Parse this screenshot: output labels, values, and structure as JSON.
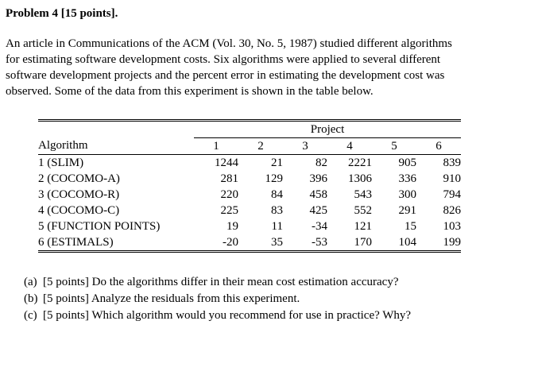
{
  "title": "Problem 4 [15 points].",
  "intro": "An article in Communications of the ACM (Vol. 30, No. 5, 1987) studied different algorithms for estimating software development costs. Six algorithms were applied to several different software development projects and the percent error in estimating the development cost was observed. Some of the data from this experiment is shown in the table below.",
  "table": {
    "group_header": "Project",
    "col_header": "Algorithm",
    "project_columns": [
      "1",
      "2",
      "3",
      "4",
      "5",
      "6"
    ],
    "rows": [
      {
        "algorithm": "1 (SLIM)",
        "values": [
          "1244",
          "21",
          "82",
          "2221",
          "905",
          "839"
        ]
      },
      {
        "algorithm": "2 (COCOMO-A)",
        "values": [
          "281",
          "129",
          "396",
          "1306",
          "336",
          "910"
        ]
      },
      {
        "algorithm": "3 (COCOMO-R)",
        "values": [
          "220",
          "84",
          "458",
          "543",
          "300",
          "794"
        ]
      },
      {
        "algorithm": "4 (COCOMO-C)",
        "values": [
          "225",
          "83",
          "425",
          "552",
          "291",
          "826"
        ]
      },
      {
        "algorithm": "5 (FUNCTION POINTS)",
        "values": [
          "19",
          "11",
          "-34",
          "121",
          "15",
          "103"
        ]
      },
      {
        "algorithm": "6 (ESTIMALS)",
        "values": [
          "-20",
          "35",
          "-53",
          "170",
          "104",
          "199"
        ]
      }
    ]
  },
  "questions": [
    {
      "label": "(a)",
      "text": "[5 points] Do the algorithms differ in their mean cost estimation accuracy?"
    },
    {
      "label": "(b)",
      "text": "[5 points] Analyze the residuals from this experiment."
    },
    {
      "label": "(c)",
      "text": "[5 points] Which algorithm would you recommend for use in practice? Why?"
    }
  ]
}
